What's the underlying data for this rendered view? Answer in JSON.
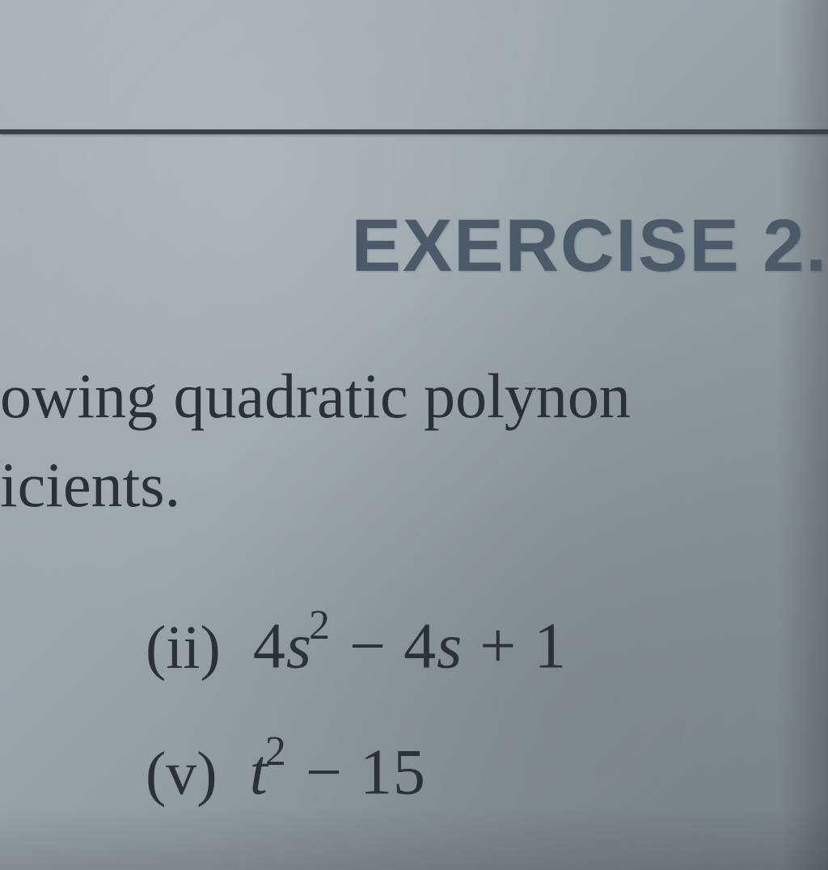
{
  "heading": "EXERCISE 2.",
  "body": {
    "line1": "owing quadratic polynon",
    "line2": "icients."
  },
  "items": [
    {
      "label": "(ii)",
      "variable1": "s",
      "coef1": "4",
      "exp1": "2",
      "op1": "−",
      "coef2": "4",
      "variable2": "s",
      "op2": "+",
      "const": "1"
    },
    {
      "label": "(v)",
      "variable1": "t",
      "exp1": "2",
      "op1": "−",
      "const": "15"
    }
  ],
  "colors": {
    "heading": "#4a5a68",
    "text": "#2a3238",
    "divider": "#3a4248",
    "background_light": "#a8b0b5",
    "background_dark": "#7a858c"
  },
  "typography": {
    "heading_fontsize": 92,
    "body_fontsize": 78,
    "item_fontsize": 80,
    "superscript_fontsize": 52
  }
}
